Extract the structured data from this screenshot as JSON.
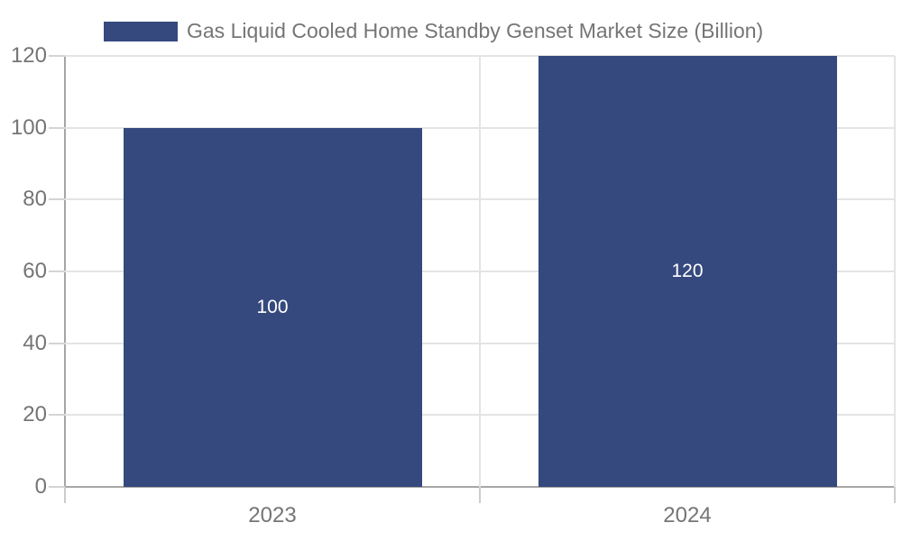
{
  "chart_data": {
    "type": "bar",
    "title": "Gas Liquid Cooled Home Standby Genset Market Size (Billion)",
    "categories": [
      "2023",
      "2024"
    ],
    "series": [
      {
        "name": "Gas Liquid Cooled Home Standby Genset Market Size (Billion)",
        "values": [
          100,
          120
        ]
      }
    ],
    "bar_value_labels": [
      "100",
      "120"
    ],
    "xlabel": "",
    "ylabel": "",
    "ylim": [
      0,
      120
    ],
    "yticks": [
      0,
      20,
      40,
      60,
      80,
      100,
      120
    ],
    "grid": true,
    "legend_position": "top",
    "colors": {
      "bar": "#36497E",
      "tick_text": "#757575",
      "bar_label_text": "#ffffff",
      "grid": "#e4e4e4",
      "axis": "#a6a6a6"
    }
  }
}
